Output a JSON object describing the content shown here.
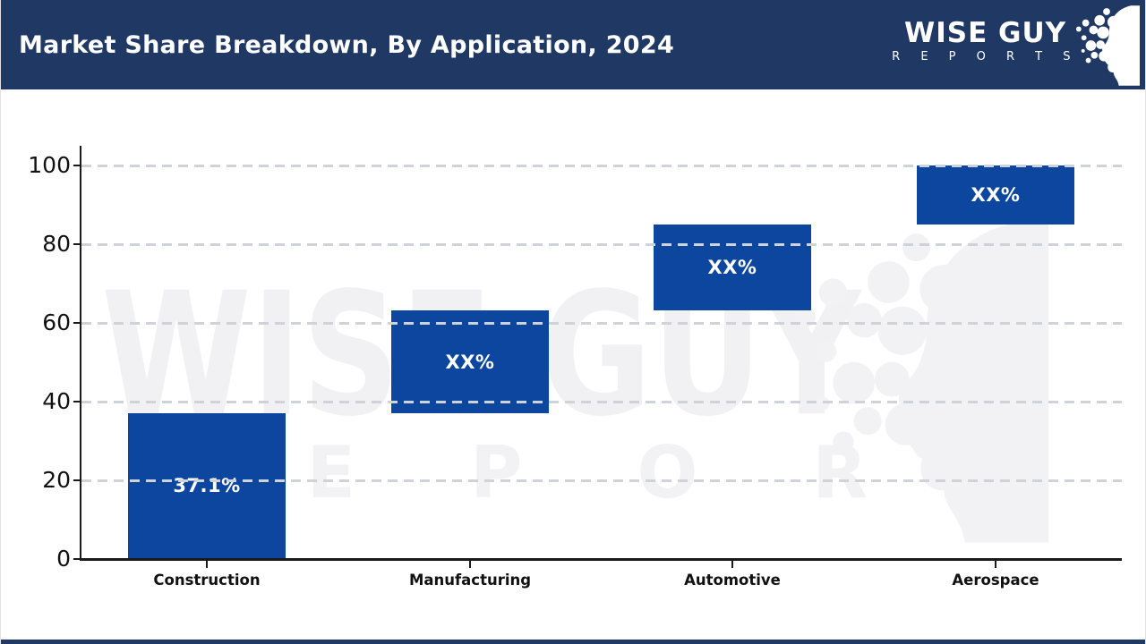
{
  "header": {
    "title": "Market Share Breakdown, By Application, 2024",
    "logo": {
      "line1": "WISE GUY",
      "line2": "R E P O R T S"
    }
  },
  "watermark": {
    "line1": "WISE GUY",
    "line2": "R E P O R T S"
  },
  "colors": {
    "header_bg": "#1f3864",
    "bar": "#0c469e",
    "grid": "#ced3d9",
    "axis": "#1a1a1a",
    "title_text": "#ffffff",
    "bar_label_text": "#ffffff",
    "watermark_text": "#f1f1f4"
  },
  "chart_data": {
    "type": "bar",
    "subtype": "waterfall",
    "title": "Market Share Breakdown, By Application, 2024",
    "xlabel": "",
    "ylabel": "",
    "categories": [
      "Construction",
      "Manufacturing",
      "Automotive",
      "Aerospace"
    ],
    "segments": [
      {
        "category": "Construction",
        "start": 0,
        "end": 37.1,
        "label": "37.1%"
      },
      {
        "category": "Manufacturing",
        "start": 37.1,
        "end": 63.1,
        "label": "XX%"
      },
      {
        "category": "Automotive",
        "start": 63.1,
        "end": 85.1,
        "label": "XX%"
      },
      {
        "category": "Aerospace",
        "start": 85.1,
        "end": 100,
        "label": "XX%"
      }
    ],
    "yticks": [
      0,
      20,
      40,
      60,
      80,
      100
    ],
    "ylim": [
      0,
      105
    ],
    "grid": "horizontal-dashed",
    "legend": "none",
    "bar_color": "#0c469e"
  }
}
